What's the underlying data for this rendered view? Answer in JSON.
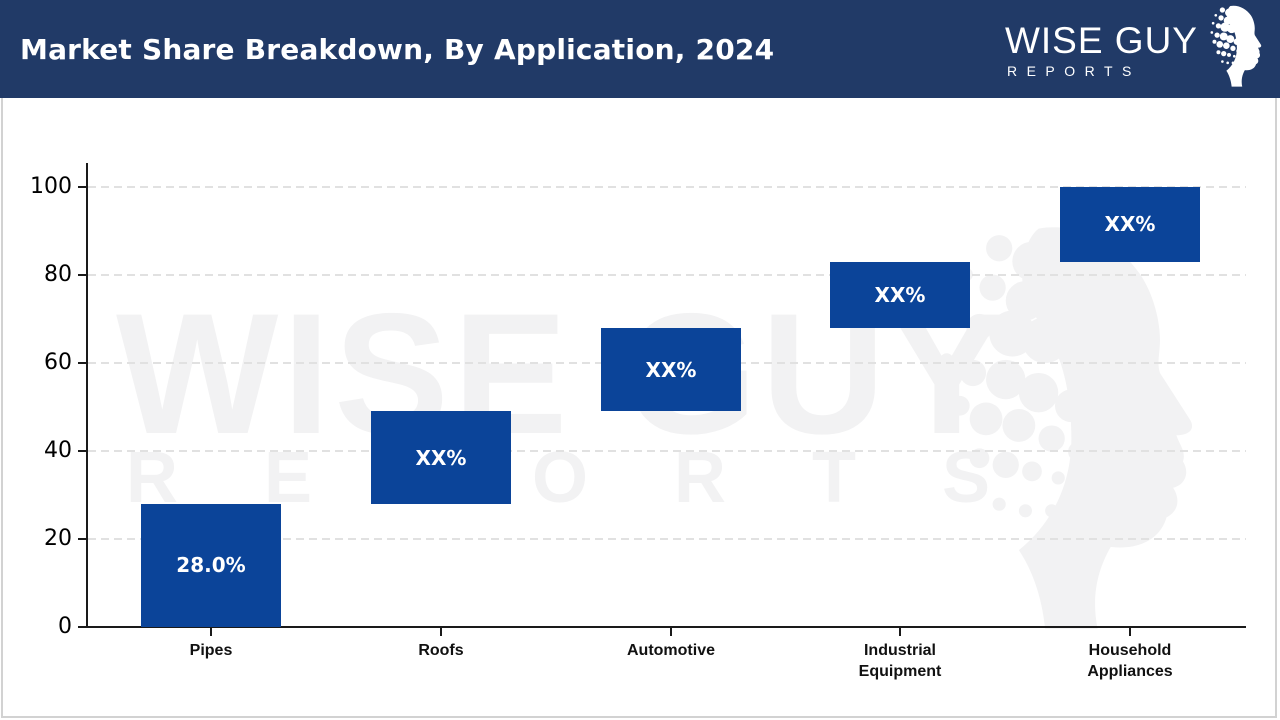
{
  "header": {
    "title": "Market Share Breakdown, By Application, 2024",
    "logo": {
      "line1": "WISE GUY",
      "line2": "REPORTS"
    }
  },
  "watermark": {
    "line1": "WISE GUY",
    "line2": "REPORTS"
  },
  "colors": {
    "header_bg": "#213A67",
    "bar": "#0B4499",
    "bar_label": "#FFFFFF",
    "axis": "#1A1A1A",
    "gridline": "#E1E1E1",
    "tick_label": "#000000",
    "watermark": "#F2F2F3",
    "card_border": "#D2D2D2"
  },
  "chart_data": {
    "type": "bar",
    "subtype": "waterfall",
    "title": "Market Share Breakdown, By Application, 2024",
    "categories": [
      "Pipes",
      "Roofs",
      "Automotive",
      "Industrial Equipment",
      "Household Appliances"
    ],
    "category_label_lines": [
      [
        "Pipes"
      ],
      [
        "Roofs"
      ],
      [
        "Automotive"
      ],
      [
        "Industrial",
        "Equipment"
      ],
      [
        "Household",
        "Appliances"
      ]
    ],
    "segments": [
      {
        "category": "Pipes",
        "start": 0,
        "end": 28,
        "label": "28.0%"
      },
      {
        "category": "Roofs",
        "start": 28,
        "end": 49,
        "label": "XX%"
      },
      {
        "category": "Automotive",
        "start": 49,
        "end": 68,
        "label": "XX%"
      },
      {
        "category": "Industrial Equipment",
        "start": 68,
        "end": 83,
        "label": "XX%"
      },
      {
        "category": "Household Appliances",
        "start": 83,
        "end": 100,
        "label": "XX%"
      }
    ],
    "y_ticks": [
      0,
      20,
      40,
      60,
      80,
      100
    ],
    "ylim": [
      0,
      105.5
    ],
    "xlabel": "",
    "ylabel": "",
    "grid": "horizontal-dashed",
    "legend": "none"
  }
}
